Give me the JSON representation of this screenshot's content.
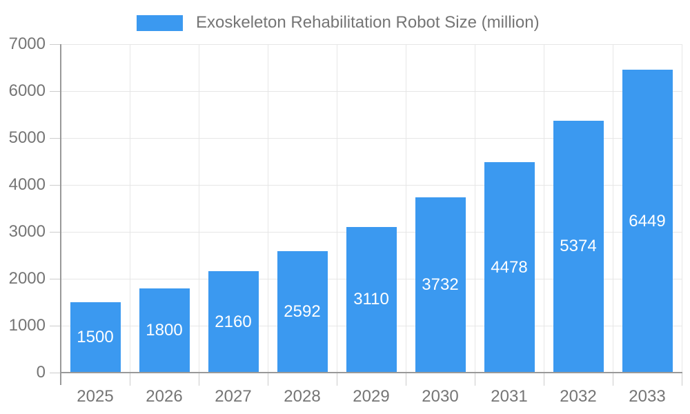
{
  "chart_data": {
    "type": "bar",
    "title": "Exoskeleton Rehabilitation Robot Size (million)",
    "categories": [
      "2025",
      "2026",
      "2027",
      "2028",
      "2029",
      "2030",
      "2031",
      "2032",
      "2033"
    ],
    "values": [
      1500,
      1800,
      2160,
      2592,
      3110,
      3732,
      4478,
      5374,
      6449
    ],
    "xlabel": "",
    "ylabel": "",
    "ylim": [
      0,
      7000
    ],
    "yticks": [
      0,
      1000,
      2000,
      3000,
      4000,
      5000,
      6000,
      7000
    ],
    "grid": true,
    "legend_position": "top",
    "bar_labels_inside": true,
    "colors": {
      "bar": "#3b99f0",
      "bar_label": "#ffffff",
      "axis_line": "#999999",
      "tick": "#cccccc",
      "grid": "#e6e6e6",
      "text": "#757575",
      "background": "#ffffff"
    }
  }
}
